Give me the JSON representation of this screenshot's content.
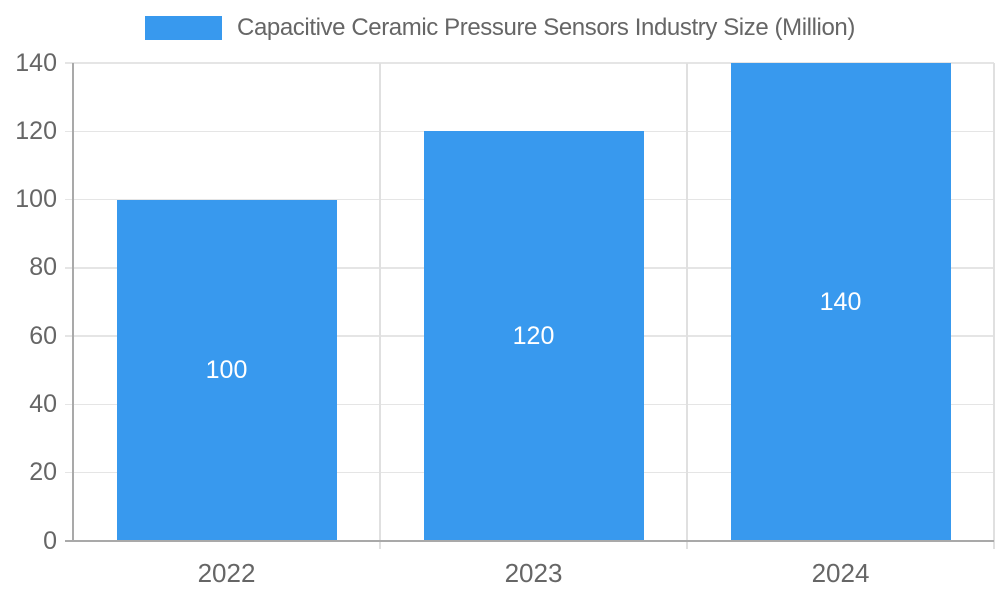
{
  "legend": {
    "label": "Capacitive Ceramic Pressure Sensors Industry Size (Million)",
    "swatch_color": "#3899ee"
  },
  "chart_data": {
    "type": "bar",
    "title": "Capacitive Ceramic Pressure Sensors Industry Size (Million)",
    "categories": [
      "2022",
      "2023",
      "2024"
    ],
    "values": [
      100,
      120,
      140
    ],
    "series": [
      {
        "name": "Capacitive Ceramic Pressure Sensors Industry Size (Million)",
        "values": [
          100,
          120,
          140
        ]
      }
    ],
    "data_labels": [
      "100",
      "120",
      "140"
    ],
    "xlabel": "",
    "ylabel": "",
    "ylim": [
      0,
      140
    ],
    "ytick_step": 20,
    "yticks": [
      0,
      20,
      40,
      60,
      80,
      100,
      120,
      140
    ],
    "grid": true,
    "legend_position": "top-center",
    "colors": {
      "bar": "#3899ee",
      "data_label": "#ffffff",
      "axis_line": "#a9a9a9",
      "gridline": "#e5e5e5",
      "tick_label": "#666666",
      "legend_text": "#666666"
    }
  }
}
